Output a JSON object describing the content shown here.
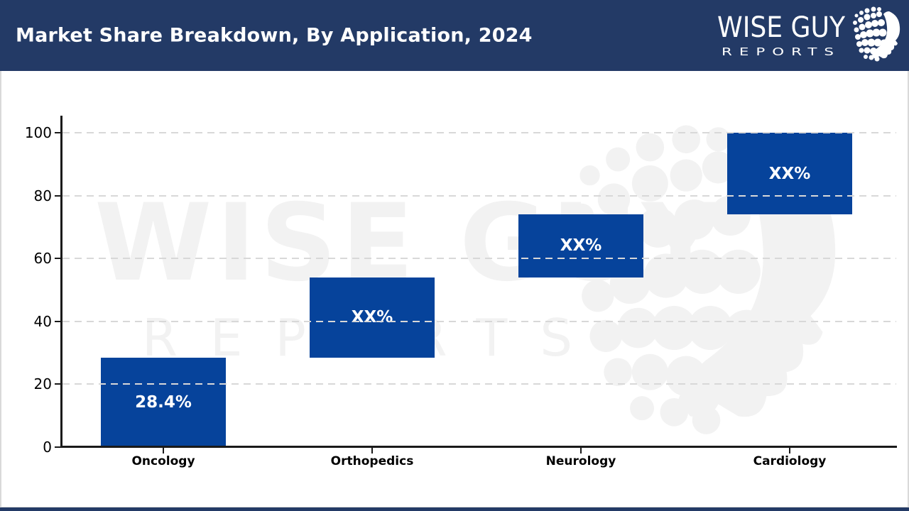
{
  "header": {
    "title": "Market Share Breakdown, By Application, 2024",
    "logo": {
      "line1": "WISE GUY",
      "line2": "REPORTS"
    }
  },
  "watermark": {
    "line1": "WISE GUY",
    "line2": "REPORTS"
  },
  "colors": {
    "header_bg": "#233a66",
    "footer_bg": "#233a66",
    "bar": "#06439b",
    "axis": "#1a1a1a",
    "grid": "#d8d8d8",
    "watermark": "#f2f2f2"
  },
  "chart_data": {
    "type": "bar",
    "subtype": "floating-waterfall",
    "title": "Market Share Breakdown, By Application, 2024",
    "xlabel": "",
    "ylabel": "",
    "ylim": [
      0,
      105
    ],
    "y_ticks": [
      0,
      20,
      40,
      60,
      80,
      100
    ],
    "grid": "horizontal-dashed-above-bars",
    "legend": "none",
    "categories": [
      "Oncology",
      "Orthopedics",
      "Neurology",
      "Cardiology"
    ],
    "bars": [
      {
        "category": "Oncology",
        "start": 0,
        "end": 28.4,
        "label": "28.4%"
      },
      {
        "category": "Orthopedics",
        "start": 28.4,
        "end": 54,
        "label": "XX%"
      },
      {
        "category": "Neurology",
        "start": 54,
        "end": 74,
        "label": "XX%"
      },
      {
        "category": "Cardiology",
        "start": 74,
        "end": 100,
        "label": "XX%"
      }
    ]
  }
}
